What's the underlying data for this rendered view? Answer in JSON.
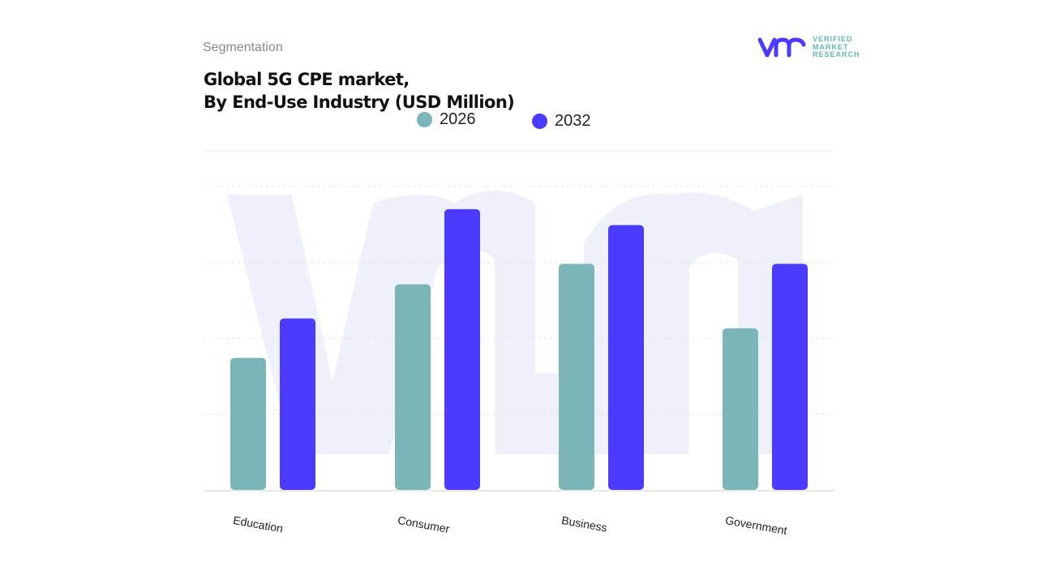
{
  "header": {
    "segment_label": "Segmentation",
    "title_line1": "Global 5G CPE market,",
    "title_line2": "By End-Use Industry (USD Million)"
  },
  "logo": {
    "mark": "vmr",
    "line1": "VERIFIED",
    "line2": "MARKET",
    "line3": "RESEARCH"
  },
  "colors": {
    "series_2026": "#7ab5b8",
    "series_2032": "#4b3aff",
    "watermark": "#eef1fa"
  },
  "chart_data": {
    "type": "bar",
    "title": "Global 5G CPE market, By End-Use Industry (USD Million)",
    "categories": [
      "Education",
      "Consumer",
      "Business",
      "Government"
    ],
    "series": [
      {
        "name": "2026",
        "values": [
          1.74,
          2.71,
          2.98,
          2.13
        ]
      },
      {
        "name": "2032",
        "values": [
          2.26,
          3.7,
          3.49,
          2.98
        ]
      }
    ],
    "ylim": [
      0,
      4.5
    ],
    "grid": true,
    "y_tick_labels_shown": false,
    "legend": "top-center"
  }
}
